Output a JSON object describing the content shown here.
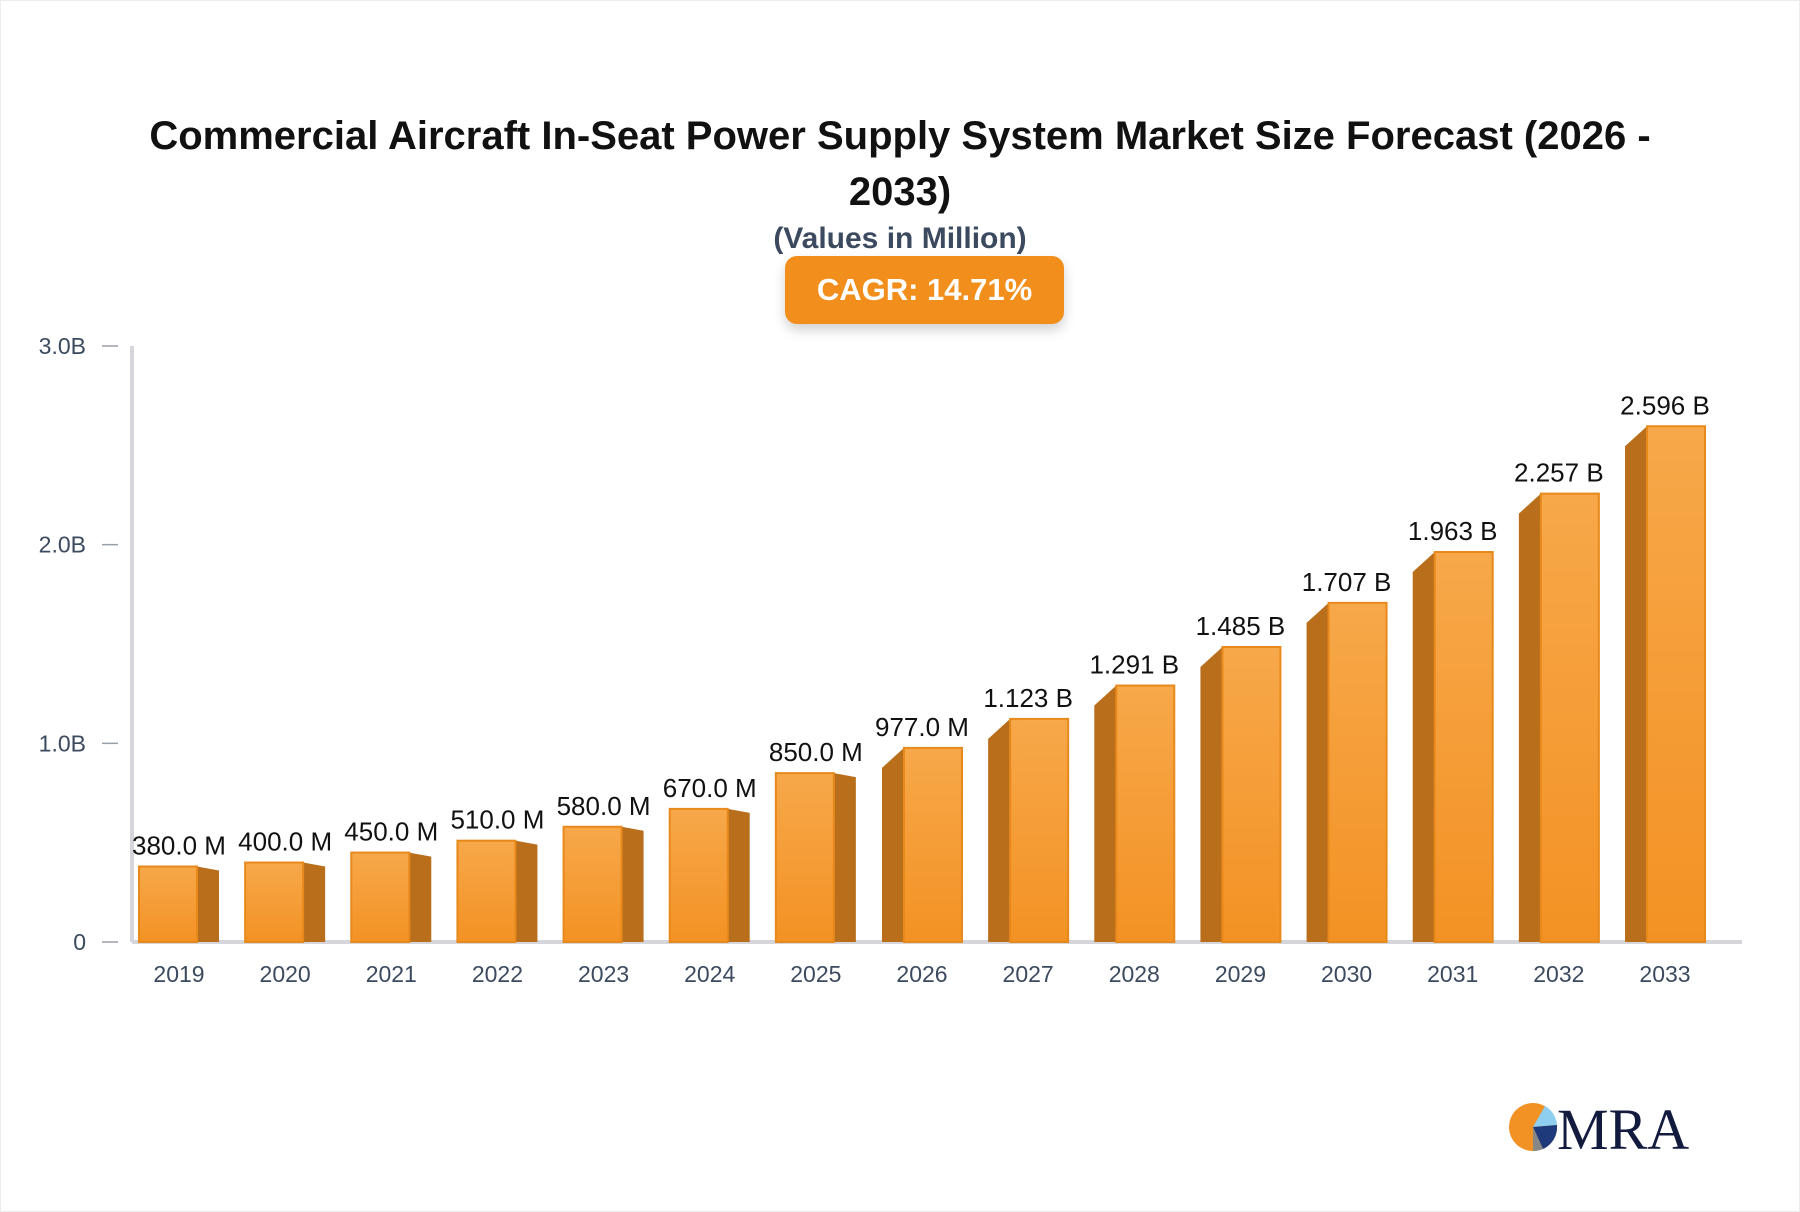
{
  "chart_data": {
    "type": "bar",
    "title": "Commercial Aircraft In-Seat Power Supply System Market Size Forecast (2026 - 2033)",
    "subtitle": "(Values in Million)",
    "badge": "CAGR: 14.71%",
    "categories": [
      "2019",
      "2020",
      "2021",
      "2022",
      "2023",
      "2024",
      "2025",
      "2026",
      "2027",
      "2028",
      "2029",
      "2030",
      "2031",
      "2032",
      "2033"
    ],
    "values": [
      380.0,
      400.0,
      450.0,
      510.0,
      580.0,
      670.0,
      850.0,
      977.0,
      1123,
      1291,
      1485,
      1707,
      1963,
      2257,
      2596
    ],
    "data_labels": [
      "380.0 M",
      "400.0 M",
      "450.0 M",
      "510.0 M",
      "580.0 M",
      "670.0 M",
      "850.0 M",
      "977.0 M",
      "1.123 B",
      "1.291 B",
      "1.485 B",
      "1.707 B",
      "1.963 B",
      "2.257 B",
      "2.596 B"
    ],
    "ylim": [
      0,
      3000
    ],
    "yticks": [
      0,
      1000,
      2000,
      3000
    ],
    "ytick_labels": [
      "0",
      "1.0B",
      "2.0B",
      "3.0B"
    ],
    "grid": false,
    "colors": {
      "bar_front": "#f7a84a",
      "bar_bottom": "#f39224",
      "bar_side": "#b86e1a",
      "badge": "#f28f1c"
    }
  },
  "logo": {
    "text": "MRA"
  }
}
